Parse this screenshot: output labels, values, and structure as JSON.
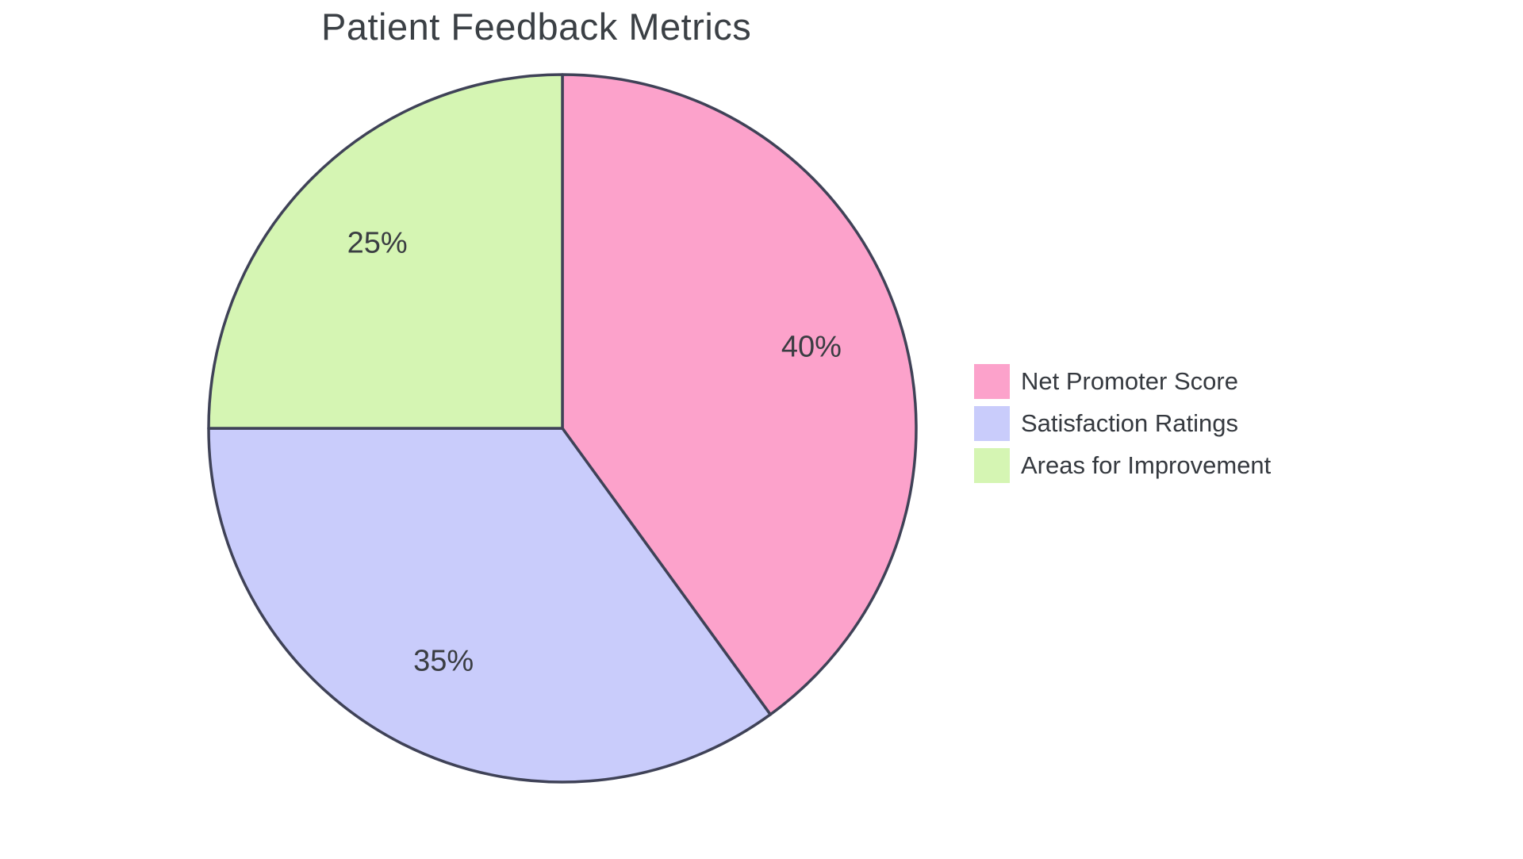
{
  "chart_data": {
    "type": "pie",
    "title": "Patient Feedback Metrics",
    "categories": [
      "Net Promoter Score",
      "Satisfaction Ratings",
      "Areas for Improvement"
    ],
    "values": [
      40,
      35,
      25
    ],
    "labels": [
      "40%",
      "35%",
      "25%"
    ],
    "colors": [
      "#FCA2CB",
      "#C9CCFB",
      "#D5F5B3"
    ],
    "slice_border_color": "#3F4257",
    "label_color": "#3A3D42",
    "title_color": "#3B4045",
    "legend_text_color": "#35393F",
    "background": "#FFFFFF",
    "legend_position": "right",
    "start_angle_deg": 0,
    "direction": "clockwise"
  }
}
